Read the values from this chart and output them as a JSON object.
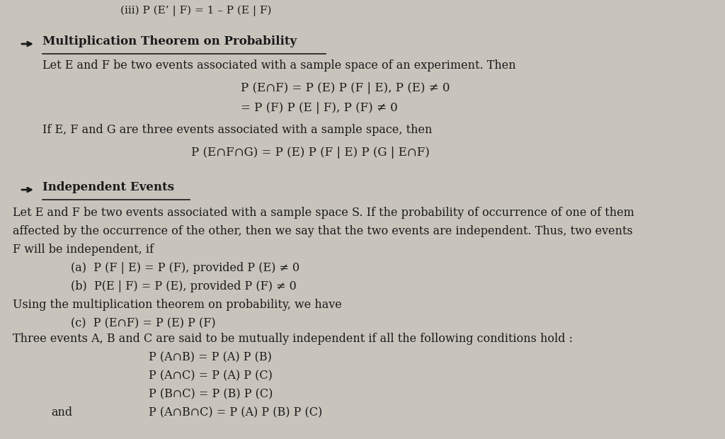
{
  "bg_color": "#c8c4bc",
  "text_color": "#1a1a1a",
  "title_top": "(iii) P (E’ | F) = 1 – P (E | F)",
  "section1_header": "Multiplication Theorem on Probability",
  "section1_intro": "Let E and F be two events associated with a sample space of an experiment. Then",
  "eq1": "P (E∩F) = P (E) P (F | E), P (E) ≠ 0",
  "eq2": "= P (F) P (E | F), P (F) ≠ 0",
  "section1_note": "If E, F and G are three events associated with a sample space, then",
  "eq3": "P (E∩F∩G) = P (E) P (F | E) P (G | E∩F)",
  "section2_header": "Independent Events",
  "section2_line1": "Let E and F be two events associated with a sample space S. If the probability of occurrence of one of them",
  "section2_line2": "affected by the occurrence of the other, then we say that the two events are independent. Thus, two events",
  "section2_line3": "F will be independent, if",
  "item_a": "(a)  P (F | E) = P (F), provided P (E) ≠ 0",
  "item_b": "(b)  P(E | F) = P (E), provided P (F) ≠ 0",
  "using_text": "Using the multiplication theorem on probability, we have",
  "item_c": "(c)  P (E∩F) = P (E) P (F)",
  "three_events": "Three events A, B and C are said to be mutually independent if all the following conditions hold :",
  "cond1": "P (A∩B) = P (A) P (B)",
  "cond2": "P (A∩C) = P (A) P (C)",
  "cond3": "P (B∩C) = P (B) P (C)",
  "cond4": "P (A∩B∩C) = P (A) P (B) P (C)",
  "and_label": "and"
}
